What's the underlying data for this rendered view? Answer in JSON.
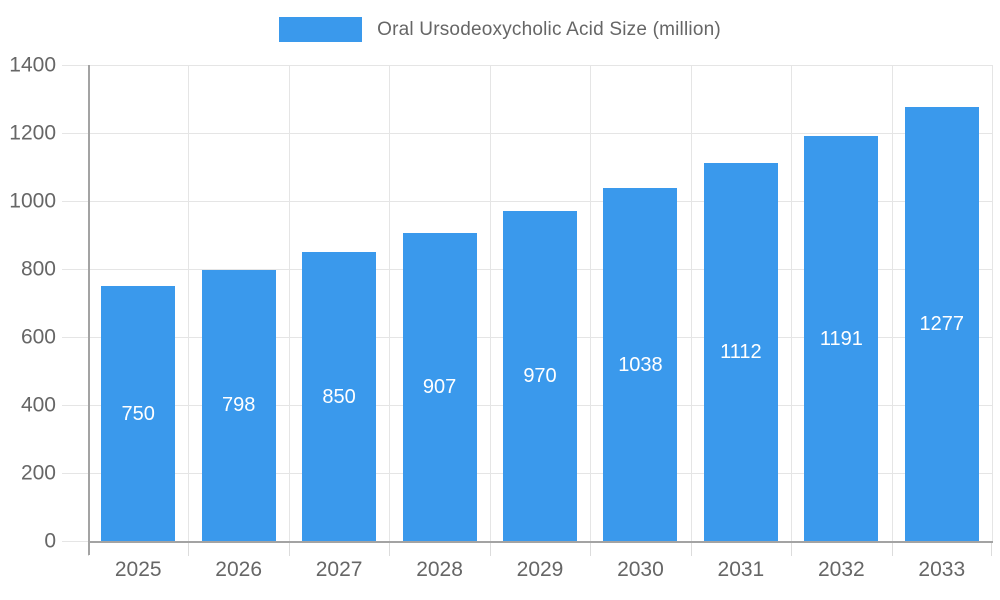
{
  "legend": {
    "label": "Oral Ursodeoxycholic Acid Size (million)",
    "swatch_color": "#3A99EC"
  },
  "chart_data": {
    "type": "bar",
    "title": "",
    "categories": [
      "2025",
      "2026",
      "2027",
      "2028",
      "2029",
      "2030",
      "2031",
      "2032",
      "2033"
    ],
    "series": [
      {
        "name": "Oral Ursodeoxycholic Acid Size (million)",
        "values": [
          750,
          798,
          850,
          907,
          970,
          1038,
          1112,
          1191,
          1277
        ],
        "color": "#3A99EC"
      }
    ],
    "xlabel": "",
    "ylabel": "",
    "ylim": [
      0,
      1400
    ],
    "ytick_step": 200,
    "yticks": [
      0,
      200,
      400,
      600,
      800,
      1000,
      1200,
      1400
    ],
    "grid": true,
    "legend_position": "top",
    "value_labels": "inside-center",
    "value_label_color": "#FFFFFF"
  },
  "colors": {
    "bar": "#3A99EC",
    "gridline": "#E5E5E5",
    "axis_line": "#A3A3A3",
    "label_text": "#666666"
  }
}
